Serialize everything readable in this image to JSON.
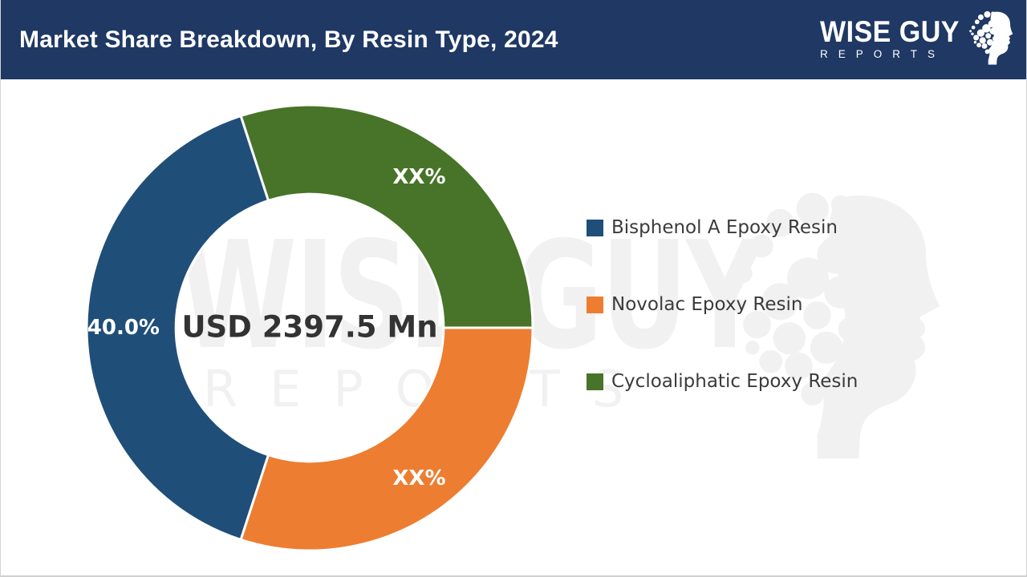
{
  "header": {
    "title": "Market Share Breakdown, By Resin Type, 2024",
    "logo": {
      "name": "WISE GUY",
      "sub": "REPORTS"
    }
  },
  "watermark": {
    "line1": "WISE GUY",
    "line2": "REPORTS"
  },
  "chart_data": {
    "type": "pie",
    "subtype": "donut",
    "title": "Market Share Breakdown, By Resin Type, 2024",
    "center_label": "USD 2397.5 Mn",
    "start_angle_deg": -18,
    "direction": "clockwise",
    "inner_radius_ratio": 0.6,
    "slice_label_radius_ratio": 0.835,
    "segments": [
      {
        "name": "Cycloaliphatic Epoxy Resin",
        "value_pct": 30,
        "display_label": "XX%",
        "color": "#477428"
      },
      {
        "name": "Novolac Epoxy Resin",
        "value_pct": 30,
        "display_label": "XX%",
        "color": "#ED7D31"
      },
      {
        "name": "Bisphenol A Epoxy Resin",
        "value_pct": 40,
        "display_label": "40.0%",
        "color": "#1F4E79"
      }
    ],
    "legend": {
      "position": "right",
      "items": [
        {
          "label": "Bisphenol A Epoxy Resin",
          "color": "#1F4E79"
        },
        {
          "label": "Novolac Epoxy Resin",
          "color": "#ED7D31"
        },
        {
          "label": "Cycloaliphatic Epoxy Resin",
          "color": "#477428"
        }
      ]
    }
  },
  "colors": {
    "header_bg": "#1F3864",
    "page_bg": "#FFFFFF",
    "center_label_color": "#333333",
    "legend_text": "#3B3B3B",
    "slice_label_color": "#FFFFFF",
    "watermark": "#F1F1F1",
    "border": "#D4D4D4"
  }
}
